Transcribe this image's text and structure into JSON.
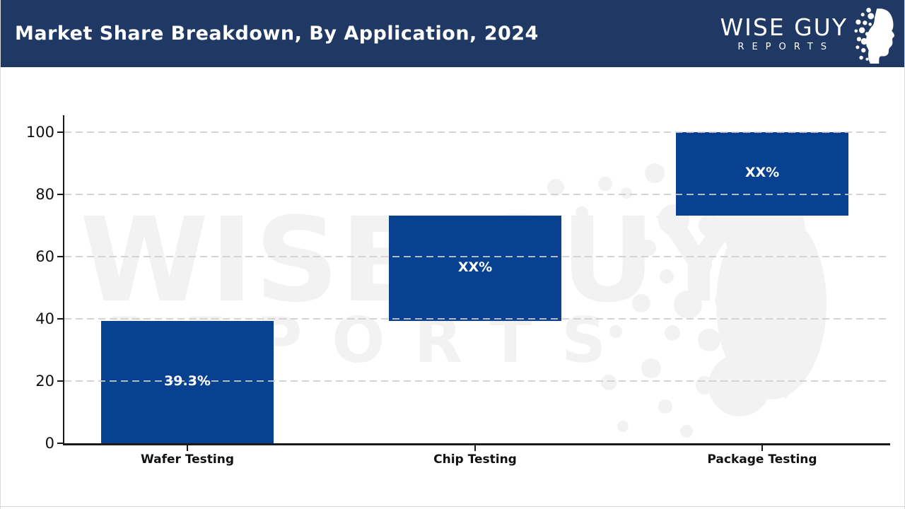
{
  "header": {
    "title": "Market Share Breakdown, By Application, 2024",
    "logo": {
      "name_line": "WISE GUY",
      "sub_line": "REPORTS"
    }
  },
  "watermark": {
    "line1": "WISE GUY",
    "line2": "REPORTS"
  },
  "chart_data": {
    "type": "bar",
    "subtype": "waterfall",
    "title": "Market Share Breakdown, By Application, 2024",
    "categories": [
      "Wafer Testing",
      "Chip Testing",
      "Package Testing"
    ],
    "segments": [
      {
        "category": "Wafer Testing",
        "start": 0,
        "end": 39.3,
        "label": "39.3%"
      },
      {
        "category": "Chip Testing",
        "start": 39.3,
        "end": 73.2,
        "label": "XX%"
      },
      {
        "category": "Package Testing",
        "start": 73.2,
        "end": 100,
        "label": "XX%"
      }
    ],
    "ylim": [
      0,
      100
    ],
    "yticks": [
      0,
      20,
      40,
      60,
      80,
      100
    ],
    "xlabel": "",
    "ylabel": "",
    "grid": "horizontal-dashed-over-bars",
    "legend": "none",
    "bar_color": "#07418f",
    "bar_label_color": "#ffffff",
    "axis_color": "#1a1a1a",
    "header_color": "#1f3864",
    "watermark_color": "#f2f2f2"
  }
}
